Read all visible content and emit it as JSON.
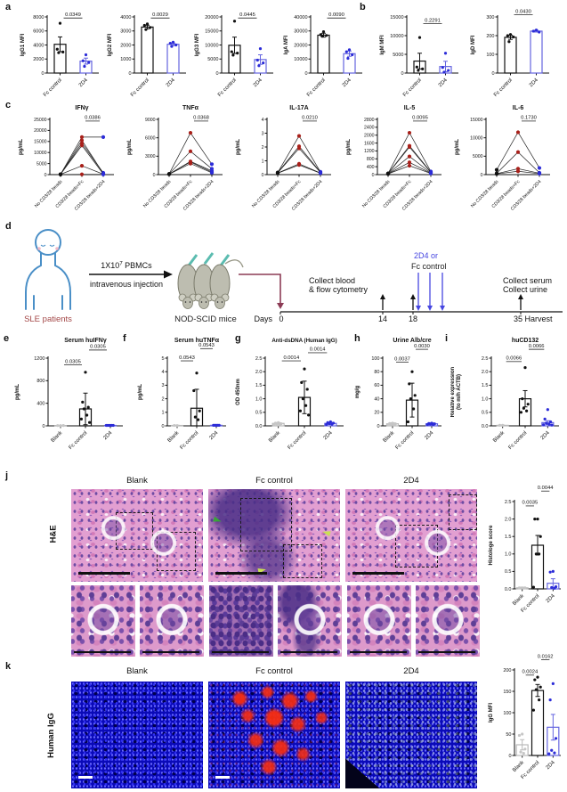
{
  "panel_labels": {
    "a": "a",
    "b": "b",
    "c": "c",
    "d": "d",
    "e": "e",
    "f": "f",
    "g": "g",
    "h": "h",
    "i": "i",
    "j": "j",
    "k": "k"
  },
  "colors": {
    "black": "#111111",
    "blue_bar": "#6565e0",
    "blue_point": "#2c2cd8",
    "gray_bar": "#b9b9b9",
    "gray_point": "#c6c6c6",
    "red_point": "#a8201a",
    "sle_red": "#a34747",
    "maroon_arrow": "#8c3b55",
    "human_blue": "#4a8fc7",
    "treatment_blue": "#4646e0",
    "he_pink": "#e29fd1",
    "if_blue": "#0a0ab8"
  },
  "diagram": {
    "patients_label": "SLE patients",
    "injection_line1_base": "1X10",
    "injection_exp": "7",
    "injection_line1_rest": " PBMCs",
    "injection_line2": "intravenous injection",
    "mice_label": "NOD-SCID mice",
    "days_label": "Days",
    "day0": "0",
    "day14": "14",
    "day18": "18",
    "day35": "35 Harvest",
    "collect_blood1": "Collect blood",
    "collect_blood2": "& flow cytometry",
    "treat1": "2D4 or",
    "treat2": "Fc control",
    "collect_serum": "Collect serum",
    "collect_urine": "Collect urine"
  },
  "j": {
    "row_label": "H&E",
    "cols": [
      "Blank",
      "Fc control",
      "2D4"
    ]
  },
  "k": {
    "row_label": "Human IgG",
    "cols": [
      "Blank",
      "Fc control",
      "2D4"
    ]
  },
  "chart_data": {
    "a1": {
      "type": "bar",
      "ylabel": "IgG1 MFI",
      "ylim": [
        0,
        8000
      ],
      "yticks": [
        "0",
        "2000",
        "4000",
        "6000",
        "8000"
      ],
      "categories": [
        "Fc control",
        "2D4"
      ],
      "values": [
        4100,
        1700
      ],
      "errors": [
        1050,
        430
      ],
      "colors": [
        "#111111",
        "#6565e0"
      ],
      "pcolors": [
        "#111111",
        "#2c2cd8"
      ],
      "points": [
        [
          7100,
          3400,
          3000,
          2900
        ],
        [
          2600,
          1750,
          1500,
          950
        ]
      ],
      "sig": [
        {
          "a": 0,
          "b": 1,
          "f": 0.02,
          "label": "0.0349"
        }
      ]
    },
    "a2": {
      "type": "bar",
      "ylabel": "IgG2 MFI",
      "ylim": [
        0,
        4000
      ],
      "yticks": [
        "0",
        "1000",
        "2000",
        "3000",
        "4000"
      ],
      "categories": [
        "Fc control",
        "2D4"
      ],
      "values": [
        3280,
        2050
      ],
      "errors": [
        130,
        90
      ],
      "colors": [
        "#111111",
        "#6565e0"
      ],
      "pcolors": [
        "#111111",
        "#2c2cd8"
      ],
      "points": [
        [
          3500,
          3400,
          3250,
          3100
        ],
        [
          2200,
          2120,
          2000,
          1900
        ]
      ],
      "sig": [
        {
          "a": 0,
          "b": 1,
          "f": 0.02,
          "label": "0.0029"
        }
      ]
    },
    "a3": {
      "type": "bar",
      "ylabel": "IgG3 MFI",
      "ylim": [
        0,
        20000
      ],
      "yticks": [
        "0",
        "5000",
        "10000",
        "15000",
        "20000"
      ],
      "categories": [
        "Fc control",
        "2D4"
      ],
      "values": [
        9900,
        4800
      ],
      "errors": [
        2900,
        1700
      ],
      "colors": [
        "#111111",
        "#6565e0"
      ],
      "pcolors": [
        "#111111",
        "#2c2cd8"
      ],
      "points": [
        [
          18500,
          7600,
          7100,
          6400
        ],
        [
          8700,
          4600,
          3600,
          2600
        ]
      ],
      "sig": [
        {
          "a": 0,
          "b": 1,
          "f": 0.02,
          "label": "0.0445"
        }
      ]
    },
    "a4": {
      "type": "bar",
      "ylabel": "IgA MFI",
      "ylim": [
        0,
        40000
      ],
      "yticks": [
        "0",
        "10000",
        "20000",
        "30000",
        "40000"
      ],
      "categories": [
        "Fc control",
        "2D4"
      ],
      "values": [
        27000,
        13800
      ],
      "errors": [
        1400,
        1900
      ],
      "colors": [
        "#111111",
        "#6565e0"
      ],
      "pcolors": [
        "#111111",
        "#2c2cd8"
      ],
      "points": [
        [
          29500,
          27400,
          26800,
          26300
        ],
        [
          16600,
          15200,
          13000,
          10500
        ]
      ],
      "sig": [
        {
          "a": 0,
          "b": 1,
          "f": 0.02,
          "label": "0.0090"
        }
      ]
    },
    "b1": {
      "type": "bar",
      "ylabel": "IgM MFI",
      "ylim": [
        0,
        15000
      ],
      "yticks": [
        "0",
        "5000",
        "10000",
        "15000"
      ],
      "categories": [
        "Fc control",
        "2D4"
      ],
      "values": [
        3200,
        1750
      ],
      "errors": [
        2100,
        1400
      ],
      "colors": [
        "#111111",
        "#6565e0"
      ],
      "pcolors": [
        "#111111",
        "#2c2cd8"
      ],
      "points": [
        [
          9500,
          1600,
          1100,
          700
        ],
        [
          5300,
          1500,
          700,
          250
        ]
      ],
      "sig": [
        {
          "a": 0,
          "b": 1,
          "f": 0.12,
          "label": "0.2291"
        }
      ]
    },
    "b2": {
      "type": "bar",
      "ylabel": "IgD MFI",
      "ylim": [
        0,
        300
      ],
      "yticks": [
        "0",
        "100",
        "200",
        "300"
      ],
      "categories": [
        "Fc control",
        "2D4"
      ],
      "values": [
        191,
        224
      ],
      "errors": [
        11,
        5
      ],
      "colors": [
        "#111111",
        "#6565e0"
      ],
      "pcolors": [
        "#111111",
        "#2c2cd8"
      ],
      "points": [
        [
          206,
          200,
          193,
          168
        ],
        [
          230,
          224,
          219
        ]
      ],
      "sig": [
        {
          "a": 0,
          "b": 1,
          "f": -0.04,
          "label": "0.0430"
        }
      ]
    },
    "c1": {
      "type": "paired",
      "title": "IFNγ",
      "ylabel": "pg/mL",
      "ylim": [
        0,
        25000
      ],
      "yticks": [
        "0",
        "5000",
        "10000",
        "15000",
        "20000",
        "25000"
      ],
      "categories": [
        "No CD3/28 beads",
        "CD3/28 beads+Fc",
        "CD3/28 beads+2D4"
      ],
      "pcolors": [
        "#111111",
        "#a8201a",
        "#2c2cd8"
      ],
      "series": [
        [
          150,
          17000,
          17000
        ],
        [
          150,
          15500,
          500
        ],
        [
          120,
          14200,
          800
        ],
        [
          120,
          13200,
          300
        ],
        [
          100,
          4000,
          200
        ],
        [
          80,
          120,
          100
        ]
      ],
      "sig": [
        {
          "a": 1,
          "b": 2,
          "f": 0.03,
          "label": "0.0386"
        }
      ]
    },
    "c2": {
      "type": "paired",
      "title": "TNFα",
      "ylabel": "pg/mL",
      "ylim": [
        0,
        9000
      ],
      "yticks": [
        "0",
        "3000",
        "6000",
        "9000"
      ],
      "categories": [
        "No CD3/28 beads",
        "CD3/28 beads+Fc",
        "CD3/28 beads+2D4"
      ],
      "pcolors": [
        "#111111",
        "#a8201a",
        "#2c2cd8"
      ],
      "series": [
        [
          120,
          6800,
          1700
        ],
        [
          100,
          3800,
          950
        ],
        [
          90,
          2150,
          600
        ],
        [
          80,
          2050,
          420
        ],
        [
          70,
          1800,
          300
        ]
      ],
      "sig": [
        {
          "a": 1,
          "b": 2,
          "f": 0.03,
          "label": "0.0368"
        }
      ]
    },
    "c3": {
      "type": "paired",
      "title": "IL-17A",
      "ylabel": "pg/mL",
      "ylim": [
        0,
        4
      ],
      "yticks": [
        "0",
        "1",
        "2",
        "3",
        "4"
      ],
      "categories": [
        "No CD3/28 beads",
        "CD3/28 beads+Fc",
        "CD3/28 beads+2D4"
      ],
      "pcolors": [
        "#111111",
        "#a8201a",
        "#2c2cd8"
      ],
      "series": [
        [
          0.15,
          2.8,
          0.2
        ],
        [
          0.15,
          2.05,
          0.18
        ],
        [
          0.13,
          1.9,
          0.15
        ],
        [
          0.12,
          0.78,
          0.12
        ],
        [
          0.1,
          0.7,
          0.1
        ]
      ],
      "sig": [
        {
          "a": 1,
          "b": 2,
          "f": 0.03,
          "label": "0.0210"
        }
      ]
    },
    "c4": {
      "type": "paired",
      "title": "IL-5",
      "ylabel": "pg/mL",
      "ylim": [
        0,
        2800
      ],
      "yticks": [
        "0",
        "400",
        "800",
        "1200",
        "1600",
        "2000",
        "2400",
        "2800"
      ],
      "categories": [
        "No CD3/28 beads",
        "CD3/28 beads+Fc",
        "CD3/28 beads+2D4"
      ],
      "pcolors": [
        "#111111",
        "#a8201a",
        "#2c2cd8"
      ],
      "series": [
        [
          60,
          2120,
          160
        ],
        [
          55,
          1460,
          130
        ],
        [
          50,
          1400,
          110
        ],
        [
          45,
          920,
          90
        ],
        [
          40,
          620,
          70
        ],
        [
          40,
          450,
          60
        ]
      ],
      "sig": [
        {
          "a": 1,
          "b": 2,
          "f": 0.03,
          "label": "0.0095"
        }
      ]
    },
    "c5": {
      "type": "paired",
      "title": "IL-6",
      "ylabel": "pg/mL",
      "ylim": [
        0,
        15000
      ],
      "yticks": [
        "0",
        "5000",
        "10000",
        "15000"
      ],
      "categories": [
        "No CD3/28 beads",
        "CD3/28 beads+Fc",
        "CD3/28 beads+2D4"
      ],
      "pcolors": [
        "#111111",
        "#a8201a",
        "#2c2cd8"
      ],
      "series": [
        [
          1300,
          11500,
          1800
        ],
        [
          350,
          6100,
          500
        ],
        [
          250,
          1600,
          380
        ],
        [
          200,
          900,
          260
        ]
      ],
      "sig": [
        {
          "a": 1,
          "b": 2,
          "f": 0.03,
          "label": "0.1730"
        }
      ]
    },
    "e": {
      "type": "bar",
      "title": "Serum huIFNγ",
      "ylabel": "pg/mL",
      "ylim": [
        0,
        1200
      ],
      "yticks": [
        "0",
        "400",
        "800",
        "1200"
      ],
      "categories": [
        "Blank",
        "Fc control",
        "2D4"
      ],
      "values": [
        6,
        300,
        8
      ],
      "errors": [
        3,
        280,
        4
      ],
      "colors": [
        "#b9b9b9",
        "#111111",
        "#6565e0"
      ],
      "pcolors": [
        "#c6c6c6",
        "#111111",
        "#2c2cd8"
      ],
      "points": [
        [
          4,
          5,
          6
        ],
        [
          950,
          420,
          330,
          300,
          190,
          120,
          60
        ],
        [
          8,
          8,
          8,
          8,
          8,
          8
        ]
      ],
      "sig": [
        {
          "a": 0,
          "b": 1,
          "f": 0.1,
          "label": "0.0305"
        },
        {
          "a": 1,
          "b": 2,
          "f": -0.12,
          "label": "0.0305"
        }
      ]
    },
    "f": {
      "type": "bar",
      "title": "Serum huTNFα",
      "ylabel": "pg/mL",
      "ylim": [
        0,
        5
      ],
      "yticks": [
        "0",
        "1",
        "2",
        "3",
        "4",
        "5"
      ],
      "categories": [
        "Blank",
        "Fc control",
        "2D4"
      ],
      "values": [
        0.03,
        1.3,
        0.04
      ],
      "errors": [
        0.02,
        1.4,
        0.02
      ],
      "colors": [
        "#b9b9b9",
        "#111111",
        "#6565e0"
      ],
      "pcolors": [
        "#c6c6c6",
        "#111111",
        "#2c2cd8"
      ],
      "points": [
        [
          0.02,
          0.03
        ],
        [
          3.9,
          2.6,
          1.1,
          0.65,
          0.45
        ],
        [
          0.04,
          0.04,
          0.04,
          0.04,
          0.04
        ]
      ],
      "sig": [
        {
          "a": 0,
          "b": 1,
          "f": 0.04,
          "label": "0.0543"
        },
        {
          "a": 1,
          "b": 2,
          "f": -0.14,
          "label": "0.0543"
        }
      ]
    },
    "g": {
      "type": "bar",
      "title": "Anti-dsDNA (Human IgG)",
      "ylabel": "OD 450nm",
      "ylim": [
        0,
        2.5
      ],
      "yticks": [
        "0.0",
        "0.5",
        "1.0",
        "1.5",
        "2.0",
        "2.5"
      ],
      "categories": [
        "Blank",
        "Fc control",
        "2D4"
      ],
      "values": [
        0.09,
        1.05,
        0.09
      ],
      "errors": [
        0.03,
        0.6,
        0.04
      ],
      "colors": [
        "#b9b9b9",
        "#111111",
        "#6565e0"
      ],
      "pcolors": [
        "#c6c6c6",
        "#111111",
        "#2c2cd8"
      ],
      "points": [
        [
          0.12,
          0.1,
          0.08,
          0.07,
          0.06,
          0.05
        ],
        [
          2.1,
          1.6,
          1.35,
          1.0,
          0.75,
          0.55,
          0.4
        ],
        [
          0.15,
          0.12,
          0.1,
          0.08,
          0.06,
          0.05
        ]
      ],
      "sig": [
        {
          "a": 0,
          "b": 1,
          "f": 0.04,
          "label": "0.0014"
        },
        {
          "a": 1,
          "b": 2,
          "f": -0.08,
          "label": "0.0014"
        }
      ]
    },
    "h": {
      "type": "bar",
      "title": "Urine Alb/cre",
      "ylabel": "mg/g",
      "ylim": [
        0,
        100
      ],
      "yticks": [
        "0",
        "20",
        "40",
        "60",
        "80",
        "100"
      ],
      "categories": [
        "Blank",
        "Fc control",
        "2D4"
      ],
      "values": [
        3,
        38,
        3
      ],
      "errors": [
        1.5,
        25,
        1.5
      ],
      "colors": [
        "#b9b9b9",
        "#111111",
        "#6565e0"
      ],
      "pcolors": [
        "#c6c6c6",
        "#111111",
        "#2c2cd8"
      ],
      "points": [
        [
          4,
          3.5,
          3,
          2.5,
          2,
          2
        ],
        [
          80,
          62,
          45,
          40,
          25,
          6
        ],
        [
          4,
          3.5,
          3,
          2.5,
          2,
          2
        ]
      ],
      "sig": [
        {
          "a": 0,
          "b": 1,
          "f": 0.06,
          "label": "0.0037"
        },
        {
          "a": 1,
          "b": 2,
          "f": -0.13,
          "label": "0.0030"
        }
      ]
    },
    "i": {
      "type": "bar",
      "title": "huCD132",
      "ylabel": "Relative expression",
      "ylabel2": "(to m/h ACTB)",
      "ylim": [
        0,
        2.5
      ],
      "yticks": [
        "0.0",
        "0.5",
        "1.0",
        "1.5",
        "2.0",
        "2.5"
      ],
      "categories": [
        "Blank",
        "Fc control",
        "2D4"
      ],
      "values": [
        0.02,
        1.0,
        0.12
      ],
      "errors": [
        0.01,
        0.3,
        0.07
      ],
      "colors": [
        "#b9b9b9",
        "#111111",
        "#6565e0"
      ],
      "pcolors": [
        "#c6c6c6",
        "#111111",
        "#2c2cd8"
      ],
      "points": [
        [
          0.02,
          0.02
        ],
        [
          2.15,
          1.0,
          0.8,
          0.65,
          0.55,
          0.5
        ],
        [
          0.6,
          0.25,
          0.15,
          0.1,
          0.06,
          0.04,
          0.03
        ]
      ],
      "sig": [
        {
          "a": 0,
          "b": 1,
          "f": 0.05,
          "label": "0.0066"
        },
        {
          "a": 1,
          "b": 2,
          "f": -0.13,
          "label": "0.0066"
        }
      ]
    },
    "j": {
      "type": "bar",
      "ylabel": "Histologe score",
      "ylim": [
        0,
        2.5
      ],
      "yticks": [
        "0.0",
        "0.5",
        "1.0",
        "1.5",
        "2.0",
        "2.5"
      ],
      "categories": [
        "Blank",
        "Fc control",
        "2D4"
      ],
      "values": [
        0.03,
        1.25,
        0.16
      ],
      "errors": [
        0.02,
        0.28,
        0.13
      ],
      "colors": [
        "#b9b9b9",
        "#111111",
        "#6565e0"
      ],
      "pcolors": [
        "#c6c6c6",
        "#111111",
        "#2c2cd8"
      ],
      "points": [
        [
          0.03,
          0.03,
          0.03
        ],
        [
          2.0,
          2.0,
          1.5,
          1.0,
          1.0,
          0.05
        ],
        [
          0.5,
          0.48,
          0.06,
          0.04,
          0.02
        ]
      ],
      "sig": [
        {
          "a": 0,
          "b": 1,
          "f": 0.05,
          "label": "0.0035"
        },
        {
          "a": 1,
          "b": 2,
          "f": -0.12,
          "label": "0.0044"
        }
      ]
    },
    "k": {
      "type": "bar",
      "ylabel": "IgG MFI",
      "ylim": [
        0,
        200
      ],
      "yticks": [
        "0",
        "50",
        "100",
        "150",
        "200"
      ],
      "categories": [
        "Blank",
        "Fc control",
        "2D4"
      ],
      "values": [
        25,
        152,
        66
      ],
      "errors": [
        12,
        14,
        30
      ],
      "colors": [
        "#b9b9b9",
        "#111111",
        "#6565e0"
      ],
      "pcolors": [
        "#c6c6c6",
        "#111111",
        "#2c2cd8"
      ],
      "points": [
        [
          50,
          47,
          15,
          8,
          5
        ],
        [
          183,
          177,
          160,
          154,
          130,
          106
        ],
        [
          168,
          130,
          40,
          12,
          6,
          4
        ]
      ],
      "sig": [
        {
          "a": 0,
          "b": 1,
          "f": 0.06,
          "label": "0.0024"
        },
        {
          "a": 1,
          "b": 2,
          "f": -0.12,
          "label": "0.0162"
        }
      ]
    }
  }
}
